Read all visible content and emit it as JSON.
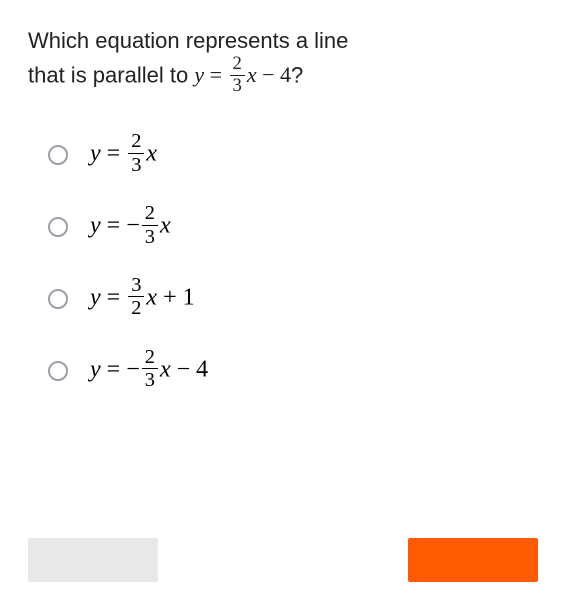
{
  "question": {
    "line1": "Which equation represents a line",
    "line2_prefix": "that is parallel to ",
    "equation_y": "y",
    "equation_eq": " = ",
    "equation_frac_num": "2",
    "equation_frac_den": "3",
    "equation_x": "x",
    "equation_suffix": " − 4",
    "qmark": "?"
  },
  "options": [
    {
      "y": "y",
      "eq": " = ",
      "neg": "",
      "num": "2",
      "den": "3",
      "x": "x",
      "tail": ""
    },
    {
      "y": "y",
      "eq": " = ",
      "neg": "−",
      "num": "2",
      "den": "3",
      "x": "x",
      "tail": ""
    },
    {
      "y": "y",
      "eq": " = ",
      "neg": "",
      "num": "3",
      "den": "2",
      "x": "x",
      "tail": " + 1"
    },
    {
      "y": "y",
      "eq": " = ",
      "neg": "−",
      "num": "2",
      "den": "3",
      "x": "x",
      "tail": " − 4"
    }
  ],
  "colors": {
    "text": "#222222",
    "radio_border": "#9aa0a6",
    "btn_grey": "#e8e8e8",
    "btn_orange": "#ff5a00",
    "background": "#ffffff"
  }
}
